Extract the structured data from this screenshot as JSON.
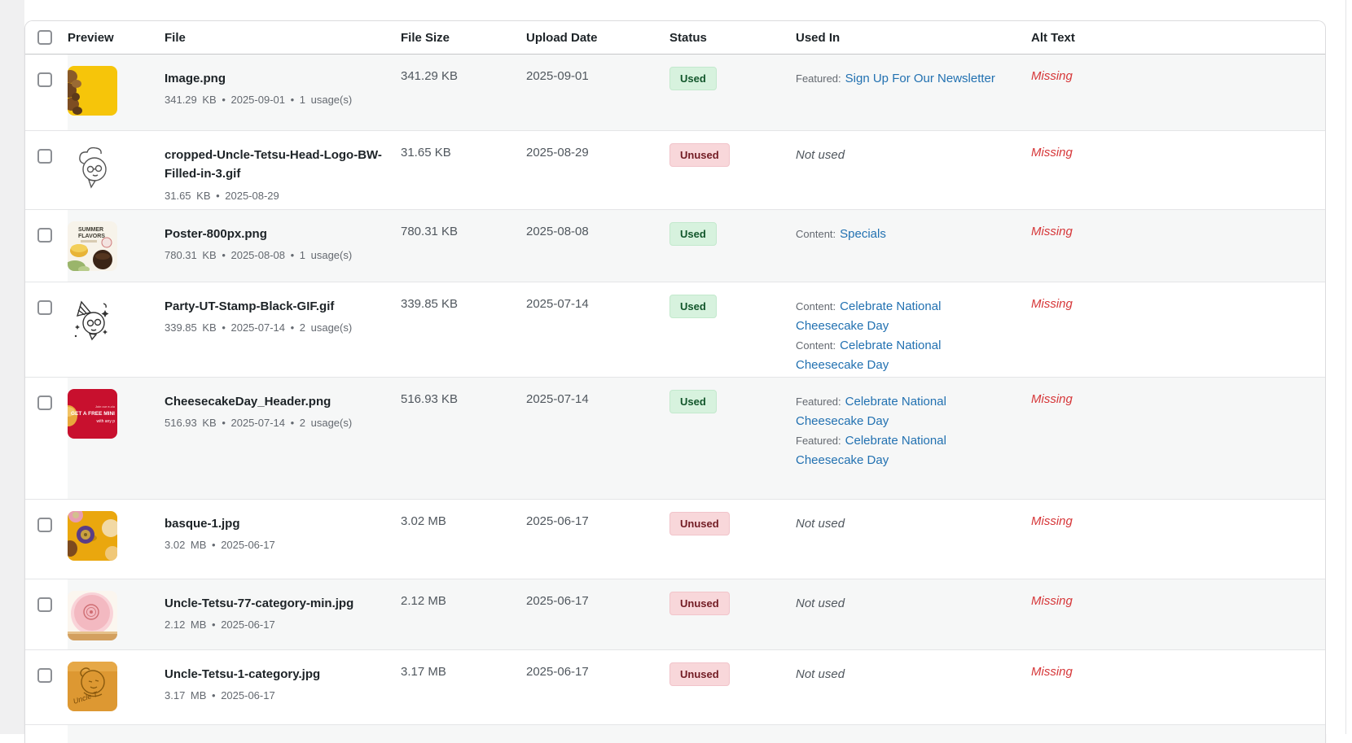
{
  "table": {
    "columns": [
      "Preview",
      "File",
      "File Size",
      "Upload Date",
      "Status",
      "Used In",
      "Alt Text"
    ],
    "labels": {
      "not_used": "Not used",
      "alt_missing": "Missing",
      "used": "Used",
      "unused": "Unused"
    },
    "rows": [
      {
        "file": "Image.png",
        "meta": "341.29 KB • 2025-09-01 • 1 usage(s)",
        "size": "341.29 KB",
        "date": "2025-09-01",
        "status": "Used",
        "used_in": [
          {
            "prefix": "Featured:",
            "title": "Sign Up For Our Newsletter"
          }
        ],
        "alt": "Missing",
        "thumb": "yellow-cookies"
      },
      {
        "file": "cropped-Uncle-Tetsu-Head-Logo-BW-Filled-in-3.gif",
        "meta": "31.65 KB • 2025-08-29",
        "size": "31.65 KB",
        "date": "2025-08-29",
        "status": "Unused",
        "used_in": [],
        "alt": "Missing",
        "thumb": "tetsu-head-line-art"
      },
      {
        "file": "Poster-800px.png",
        "meta": "780.31 KB • 2025-08-08 • 1 usage(s)",
        "size": "780.31 KB",
        "date": "2025-08-08",
        "status": "Used",
        "used_in": [
          {
            "prefix": "Content:",
            "title": "Specials"
          }
        ],
        "alt": "Missing",
        "thumb": "summer-flavors-poster"
      },
      {
        "file": "Party-UT-Stamp-Black-GIF.gif",
        "meta": "339.85 KB • 2025-07-14 • 2 usage(s)",
        "size": "339.85 KB",
        "date": "2025-07-14",
        "status": "Used",
        "used_in": [
          {
            "prefix": "Content:",
            "title": "Celebrate National Cheesecake Day"
          },
          {
            "prefix": "Content:",
            "title": "Celebrate National Cheesecake Day"
          }
        ],
        "alt": "Missing",
        "thumb": "party-stamp-line-art"
      },
      {
        "file": "CheesecakeDay_Header.png",
        "meta": "516.93 KB • 2025-07-14 • 2 usage(s)",
        "size": "516.93 KB",
        "date": "2025-07-14",
        "status": "Used",
        "used_in": [
          {
            "prefix": "Featured:",
            "title": "Celebrate National Cheesecake Day"
          },
          {
            "prefix": "Featured:",
            "title": "Celebrate National Cheesecake Day"
          }
        ],
        "alt": "Missing",
        "thumb": "red-promo-banner"
      },
      {
        "file": "basque-1.jpg",
        "meta": "3.02 MB • 2025-06-17",
        "size": "3.02 MB",
        "date": "2025-06-17",
        "status": "Unused",
        "used_in": [],
        "alt": "Missing",
        "thumb": "basque-cheesecakes"
      },
      {
        "file": "Uncle-Tetsu-77-category-min.jpg",
        "meta": "2.12 MB • 2025-06-17",
        "size": "2.12 MB",
        "date": "2025-06-17",
        "status": "Unused",
        "used_in": [],
        "alt": "Missing",
        "thumb": "pink-cheesecake"
      },
      {
        "file": "Uncle-Tetsu-1-category.jpg",
        "meta": "3.17 MB • 2025-06-17",
        "size": "3.17 MB",
        "date": "2025-06-17",
        "status": "Unused",
        "used_in": [],
        "alt": "Missing",
        "thumb": "branded-cheesecake-top"
      }
    ]
  },
  "colors": {
    "link": "#2271b1",
    "used_bg": "#d7f2de",
    "used_text": "#12562b",
    "unused_bg": "#f8d7da",
    "unused_text": "#721c24",
    "missing": "#d63638",
    "row_stripe": "#f6f7f7"
  }
}
